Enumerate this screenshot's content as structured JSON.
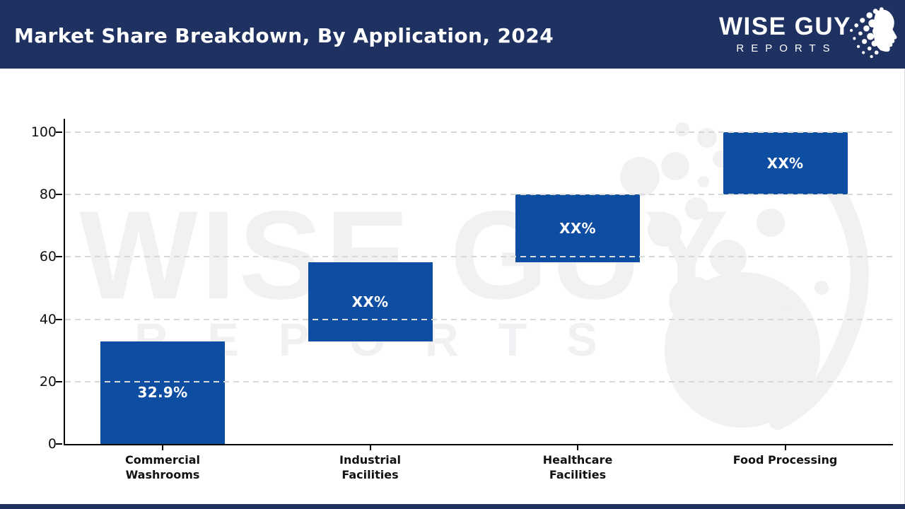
{
  "header": {
    "title": "Market Share Breakdown, By Application, 2024",
    "logo": {
      "line1": "WISE GUY",
      "line2": "REPORTS",
      "icon": "dotted-head-profile"
    }
  },
  "watermark": {
    "line1": "WISE GUY",
    "line2": "REPORTS"
  },
  "colors": {
    "header_bg": "#1f3160",
    "bar": "#0d4da2",
    "gridline": "#d8d8d8",
    "axis": "#000000",
    "bar_label_text": "#ffffff",
    "watermark": "#f1f1f4"
  },
  "chart_data": {
    "type": "bar",
    "subtype": "waterfall (floating stacked segments)",
    "title": "Market Share Breakdown, By Application, 2024",
    "categories": [
      "Commercial Washrooms",
      "Industrial Facilities",
      "Healthcare Facilities",
      "Food Processing"
    ],
    "category_lines": [
      [
        "Commercial",
        "Washrooms"
      ],
      [
        "Industrial",
        "Facilities"
      ],
      [
        "Healthcare",
        "Facilities"
      ],
      [
        "Food Processing"
      ]
    ],
    "segments": [
      {
        "category": "Commercial Washrooms",
        "start": 0,
        "end": 32.9,
        "label": "32.9%"
      },
      {
        "category": "Industrial Facilities",
        "start": 32.9,
        "end": 58.2,
        "label": "XX%"
      },
      {
        "category": "Healthcare Facilities",
        "start": 58.2,
        "end": 80.0,
        "label": "XX%"
      },
      {
        "category": "Food Processing",
        "start": 80.0,
        "end": 100.0,
        "label": "XX%"
      }
    ],
    "ylim": [
      0,
      100
    ],
    "yticks": [
      0,
      20,
      40,
      60,
      80,
      100
    ],
    "xlabel": "",
    "ylabel": "",
    "grid": "horizontal dashed, drawn over bars",
    "legend": false
  }
}
